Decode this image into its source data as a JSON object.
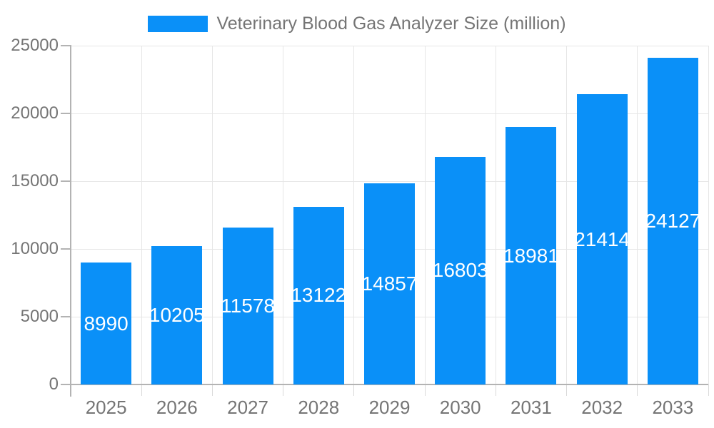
{
  "chart_data": {
    "type": "bar",
    "title": "Veterinary Blood Gas Analyzer Size (million)",
    "categories": [
      "2025",
      "2026",
      "2027",
      "2028",
      "2029",
      "2030",
      "2031",
      "2032",
      "2033"
    ],
    "values": [
      8990,
      10205,
      11578,
      13122,
      14857,
      16803,
      18981,
      21414,
      24127
    ],
    "xlabel": "",
    "ylabel": "",
    "ylim": [
      0,
      25000
    ],
    "yticks": [
      0,
      5000,
      10000,
      15000,
      20000,
      25000
    ],
    "grid": true,
    "legend_position": "top",
    "bar_value_labels": "inside-center"
  },
  "colors": {
    "bar": "#0A90F8",
    "bar_label": "#FFFFFF",
    "axis_text": "#757575",
    "axis_line": "#B3B3B3",
    "gridline": "#E6E6E6",
    "tick": "#D9D9D9",
    "background": "#FFFFFF"
  }
}
